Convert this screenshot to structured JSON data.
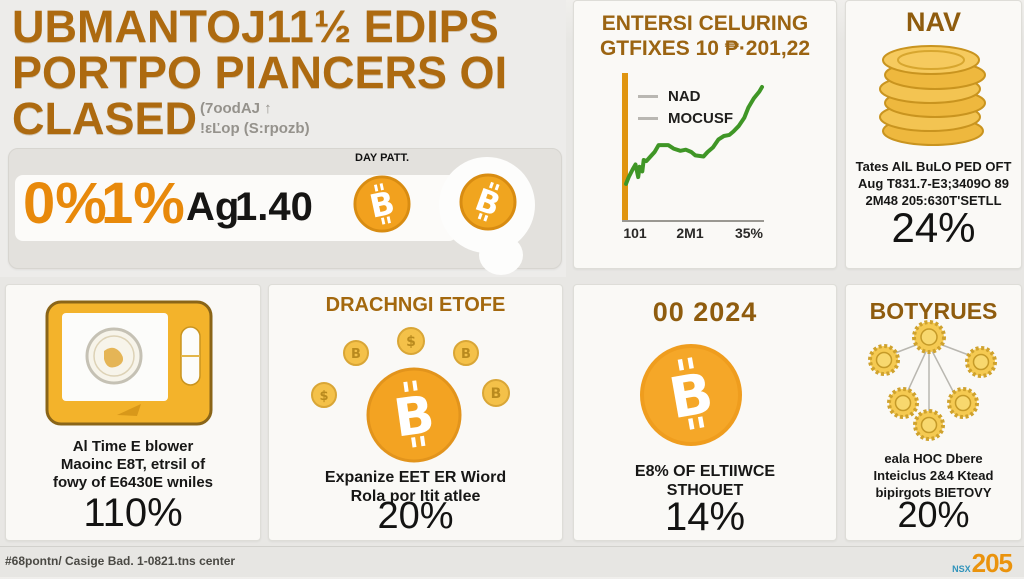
{
  "header": {
    "title_lines": [
      "UBMANTOJ11½ EDIPS",
      "PORTPO PIANCERS OI",
      "CLASED"
    ],
    "subtitle_lines": [
      "(7oodAJ ↑",
      "!εĽop (S:rpozb)"
    ]
  },
  "stat_bar": {
    "value1": "0%",
    "value2": "1%",
    "label": "Ag",
    "value3": "1.40",
    "coin_caption": "DAY PATT."
  },
  "chart_card": {
    "title_lines": [
      "ENTERSI CELURING",
      "GTFIXES 10 ₱·201,22"
    ],
    "legend": [
      "NAD",
      "MOCUSF"
    ],
    "x_ticks": [
      "101",
      "2M1",
      "35%"
    ]
  },
  "chart_data": {
    "type": "line",
    "title": "ENTERSI CELURING GTFIXES 10 ₱·201,22",
    "legend_entries": [
      "NAD",
      "MOCUSF"
    ],
    "legend_position": "upper-left",
    "x_tick_labels": [
      "101",
      "2M1",
      "35%"
    ],
    "grid": false,
    "x_range": [
      0,
      100
    ],
    "y_range": [
      0,
      100
    ],
    "series": [
      {
        "name": "NAD",
        "color": "#3f9626",
        "points": [
          [
            0,
            15
          ],
          [
            2,
            21
          ],
          [
            5,
            28
          ],
          [
            7,
            32
          ],
          [
            9,
            21
          ],
          [
            10,
            30
          ],
          [
            12,
            26
          ],
          [
            13,
            36
          ],
          [
            15,
            35
          ],
          [
            18,
            39
          ],
          [
            21,
            43
          ],
          [
            24,
            49
          ],
          [
            31,
            49
          ],
          [
            35,
            46
          ],
          [
            40,
            44
          ],
          [
            44,
            45
          ],
          [
            48,
            43
          ],
          [
            51,
            40
          ],
          [
            57,
            39
          ],
          [
            60,
            43
          ],
          [
            64,
            47
          ],
          [
            68,
            54
          ],
          [
            72,
            57
          ],
          [
            76,
            58
          ],
          [
            79,
            61
          ],
          [
            83,
            66
          ],
          [
            87,
            73
          ],
          [
            90,
            82
          ],
          [
            94,
            90
          ],
          [
            98,
            96
          ],
          [
            100,
            100
          ]
        ]
      }
    ]
  },
  "nav_card": {
    "title": "NAV",
    "lines": [
      "Tates AlL BuLO PED OFT",
      "Aug T831.7-E3;3409O 89",
      "2M48 205:630T'SETLL"
    ],
    "value": "24%"
  },
  "cards": [
    {
      "lines": [
        "Al Time E blower",
        "Maoinc E8T, etrsil of",
        "fowy of E6430E wniles"
      ],
      "value": "110%"
    },
    {
      "title": "DRACHNGI ETOFE",
      "lines": [
        "Expanize EET ER Wiord",
        "Rola por Itit atlee"
      ],
      "value": "20%"
    },
    {
      "title": "00 2024",
      "lines": [
        "E8% OF ELTIIWCE",
        "STHOUET"
      ],
      "value": "14%"
    },
    {
      "title": "BOTYRUES",
      "lines": [
        "eala HOC Dbere",
        "Inteiclus 2&4 Ktead",
        "bipirgots BIETOVY"
      ],
      "value": "20%"
    }
  ],
  "footer": {
    "left_text": "#68pontn/ Casige Bad.  1-0821.tns center",
    "brand_small": "NSX",
    "brand_big": "205"
  },
  "colors": {
    "accent_orange": "#e8890b",
    "coin_orange": "#f2a11e",
    "coin_gold": "#f1bd49",
    "line_green": "#3f9626",
    "axis_orange": "#e09510",
    "title_brown": "#ad6a10",
    "brand_teal": "#2f93bb",
    "brand_orange": "#ea930d"
  }
}
